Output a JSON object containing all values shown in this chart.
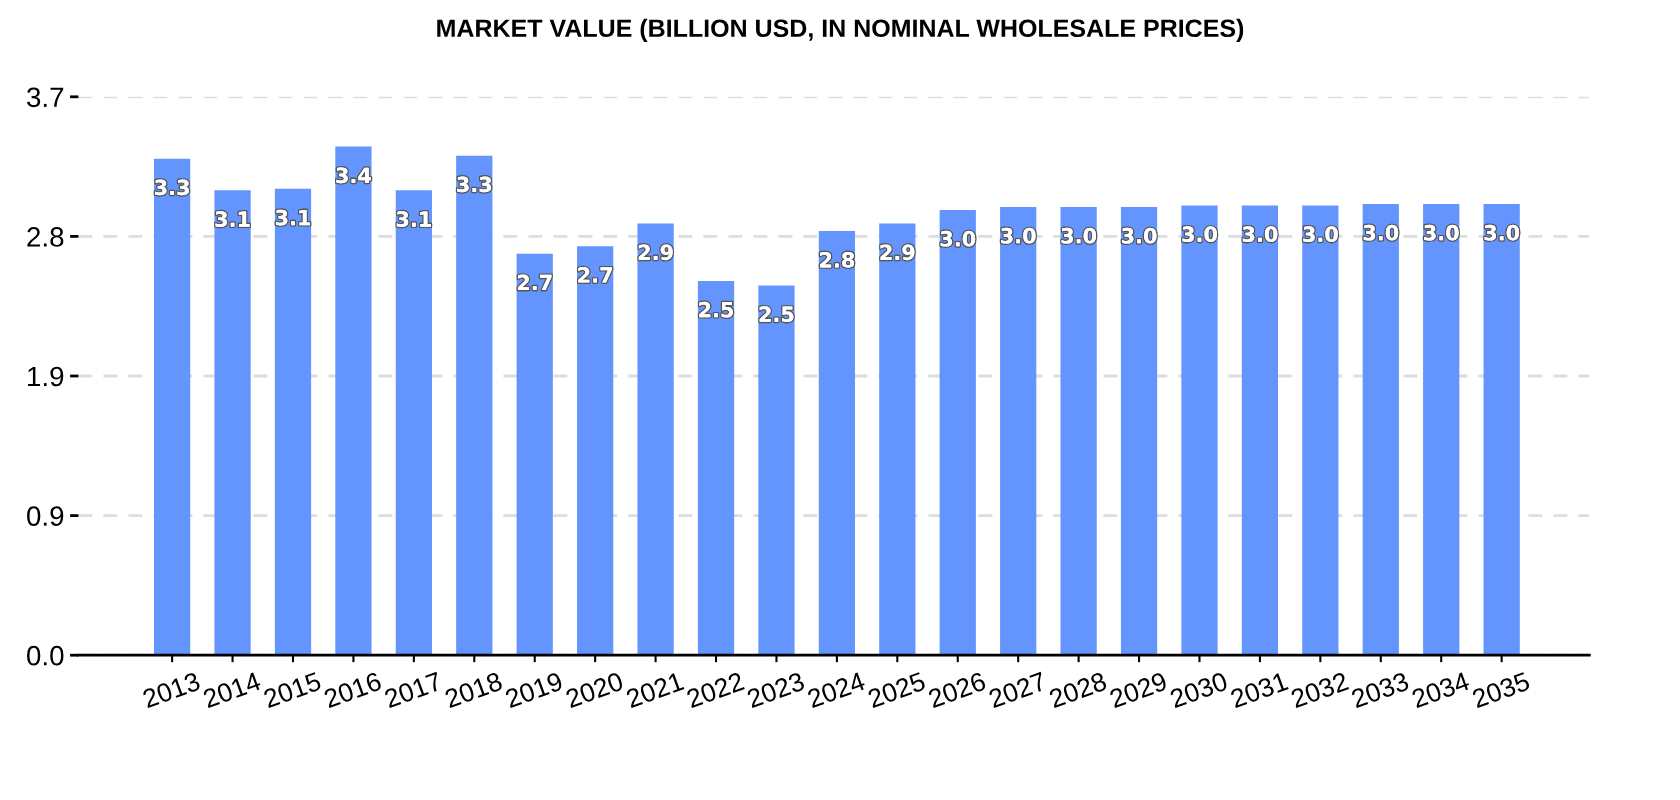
{
  "chart_data": {
    "type": "bar",
    "title": "MARKET VALUE (BILLION USD, IN NOMINAL WHOLESALE PRICES)",
    "categories": [
      "2013",
      "2014",
      "2015",
      "2016",
      "2017",
      "2018",
      "2019",
      "2020",
      "2021",
      "2022",
      "2023",
      "2024",
      "2025",
      "2026",
      "2027",
      "2028",
      "2029",
      "2030",
      "2031",
      "2032",
      "2033",
      "2034",
      "2035"
    ],
    "values": [
      3.29,
      3.08,
      3.09,
      3.37,
      3.08,
      3.31,
      2.66,
      2.71,
      2.86,
      2.48,
      2.45,
      2.81,
      2.86,
      2.95,
      2.97,
      2.97,
      2.97,
      2.98,
      2.98,
      2.98,
      2.99,
      2.99,
      2.99
    ],
    "value_labels": [
      "3.3",
      "3.1",
      "3.1",
      "3.4",
      "3.1",
      "3.3",
      "2.7",
      "2.7",
      "2.9",
      "2.5",
      "2.5",
      "2.8",
      "2.9",
      "3.0",
      "3.0",
      "3.0",
      "3.0",
      "3.0",
      "3.0",
      "3.0",
      "3.0",
      "3.0",
      "3.0"
    ],
    "color": "#6495fe",
    "ylim": [
      0,
      3.7
    ],
    "yticks": [
      {
        "value": 0,
        "label": "0.0"
      },
      {
        "value": 0.925,
        "label": "0.9"
      },
      {
        "value": 1.85,
        "label": "1.9"
      },
      {
        "value": 2.775,
        "label": "2.8"
      },
      3.7
    ],
    "grid": "y"
  }
}
